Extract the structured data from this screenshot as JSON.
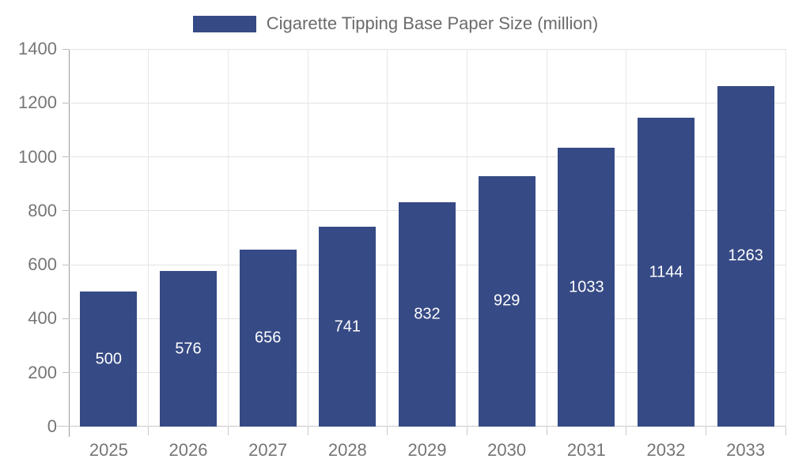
{
  "legend": {
    "series_label": "Cigarette Tipping Base Paper Size (million)"
  },
  "chart_data": {
    "type": "bar",
    "title": "Cigarette Tipping Base Paper Size (million)",
    "categories": [
      "2025",
      "2026",
      "2027",
      "2028",
      "2029",
      "2030",
      "2031",
      "2032",
      "2033"
    ],
    "values": [
      500,
      576,
      656,
      741,
      832,
      929,
      1033,
      1144,
      1263
    ],
    "xlabel": "",
    "ylabel": "",
    "ylim": [
      0,
      1400
    ],
    "yticks": [
      0,
      200,
      400,
      600,
      800,
      1000,
      1200,
      1400
    ],
    "grid": true,
    "legend_position": "top",
    "value_labels": "inside-center"
  },
  "colors": {
    "bar": "#364A85",
    "value_label": "#ffffff",
    "grid": "#e2e2e2",
    "axis_line": "#9b9b9b",
    "baseline": "#c9c9c9",
    "tick": "#c6cad2",
    "tick_label": "#757575",
    "legend_text": "#6b6b6b",
    "background": "#ffffff"
  }
}
